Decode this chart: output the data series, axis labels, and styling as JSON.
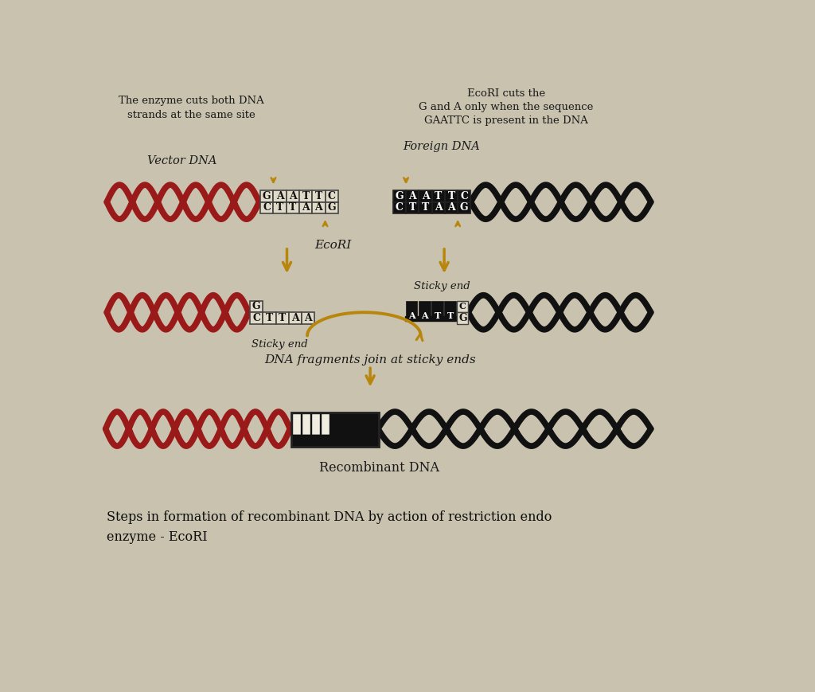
{
  "bg_color": "#c8c2ae",
  "text_top_left": "The enzyme cuts both DNA\nstrands at the same site",
  "text_top_right": "EcoRI cuts the\nG and A only when the sequence\nGAATTC is present in the DNA",
  "label_vector": "Vector DNA",
  "label_foreign": "Foreign DNA",
  "label_ecori": "EcoRI",
  "label_sticky_left": "Sticky end",
  "label_sticky_right": "Sticky end",
  "label_join": "DNA fragments join at sticky ends",
  "label_recombinant": "Recombinant DNA",
  "label_bottom": "Steps in formation of recombinant DNA by action of restriction endo\nenzyme - EcoRI",
  "dna_red": "#9a1a1a",
  "dna_black": "#111111",
  "arrow_gold": "#b8860b",
  "cell_light": "#e0dac8",
  "cell_dark": "#111111",
  "border_dark": "#333333",
  "vector_top": [
    "G",
    "A",
    "A",
    "T",
    "T",
    "C"
  ],
  "vector_bot": [
    "C",
    "T",
    "T",
    "A",
    "A",
    "G"
  ],
  "foreign_top": [
    "G",
    "A",
    "A",
    "T",
    "T",
    "C"
  ],
  "foreign_bot": [
    "C",
    "T",
    "T",
    "A",
    "A",
    "G"
  ],
  "sticky_left_top_only": "G",
  "sticky_left_bot": [
    "C",
    "T",
    "T",
    "A",
    "A"
  ],
  "sticky_right_top": [
    "A",
    "A",
    "T",
    "T"
  ],
  "sticky_right_bot_only": "G",
  "sticky_right_c": "C"
}
